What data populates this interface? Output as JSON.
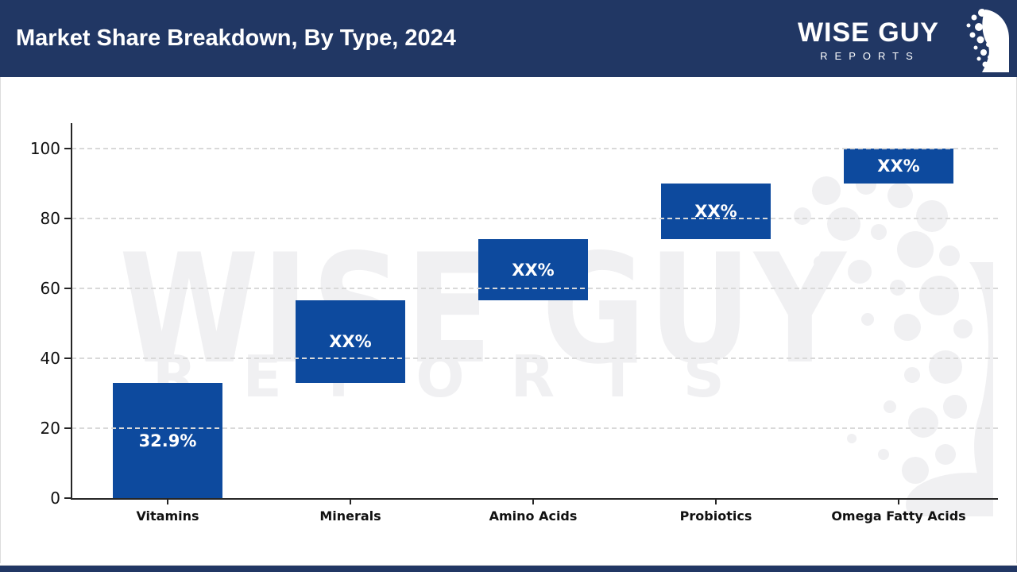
{
  "header": {
    "title": "Market Share Breakdown, By Type, 2024",
    "logo": {
      "name": "WISE GUY",
      "subname": "REPORTS"
    }
  },
  "watermark": {
    "big_text": "WISE GUY",
    "sub_text": "REPORTS"
  },
  "colors": {
    "header_bg": "#213764",
    "bar": "#0d4a9e",
    "grid": "#d9d9d9",
    "axis": "#262626",
    "bar_label": "#ffffff",
    "watermark": "#f0f0f2"
  },
  "chart_data": {
    "type": "bar",
    "variant": "waterfall",
    "title": "Market Share Breakdown, By Type, 2024",
    "categories": [
      "Vitamins",
      "Minerals",
      "Amino Acids",
      "Probiotics",
      "Omega Fatty Acids"
    ],
    "segments": [
      {
        "category": "Vitamins",
        "start": 0,
        "end": 32.9,
        "label": "32.9%"
      },
      {
        "category": "Minerals",
        "start": 32.9,
        "end": 56.5,
        "label": "XX%"
      },
      {
        "category": "Amino Acids",
        "start": 56.5,
        "end": 74.0,
        "label": "XX%"
      },
      {
        "category": "Probiotics",
        "start": 74.0,
        "end": 90.0,
        "label": "XX%"
      },
      {
        "category": "Omega Fatty Acids",
        "start": 90.0,
        "end": 100.0,
        "label": "XX%"
      }
    ],
    "ylim": [
      0,
      100
    ],
    "yticks": [
      0,
      20,
      40,
      60,
      80,
      100
    ],
    "xlabel": "",
    "ylabel": "",
    "grid": "horizontal dashed, drawn above bars",
    "legend": "none"
  }
}
